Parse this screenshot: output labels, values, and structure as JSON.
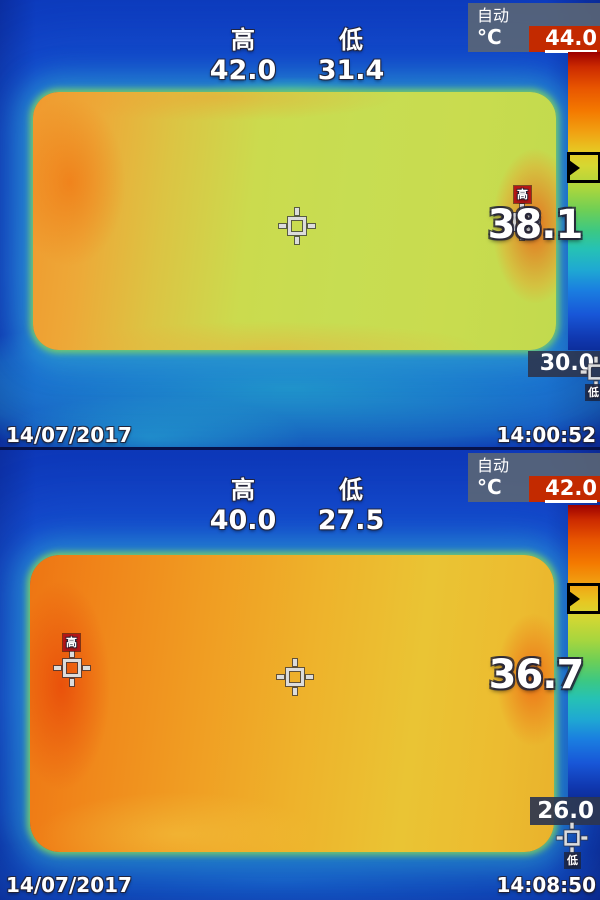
{
  "camera": {
    "panels": [
      {
        "stats": {
          "high_label": "高",
          "high_value": "42.0",
          "low_label": "低",
          "low_value": "31.4"
        },
        "mode_label": "自动",
        "unit_label": "°C",
        "scale_max": "44.0",
        "scale_min": "30.0",
        "spot_value": "38.1",
        "high_marker_label": "高",
        "low_marker_label": "低",
        "date": "14/07/2017",
        "time": "14:00:52"
      },
      {
        "stats": {
          "high_label": "高",
          "high_value": "40.0",
          "low_label": "低",
          "low_value": "27.5"
        },
        "mode_label": "自动",
        "unit_label": "°C",
        "scale_max": "42.0",
        "scale_min": "26.0",
        "spot_value": "36.7",
        "high_marker_label": "高",
        "low_marker_label": "低",
        "date": "14/07/2017",
        "time": "14:08:50"
      }
    ],
    "colors": {
      "scale_max_badge": "#c32a00",
      "hot_marker_badge": "#b51616",
      "info_box": "#5c6673",
      "scale_min_box": "#323d55"
    }
  }
}
